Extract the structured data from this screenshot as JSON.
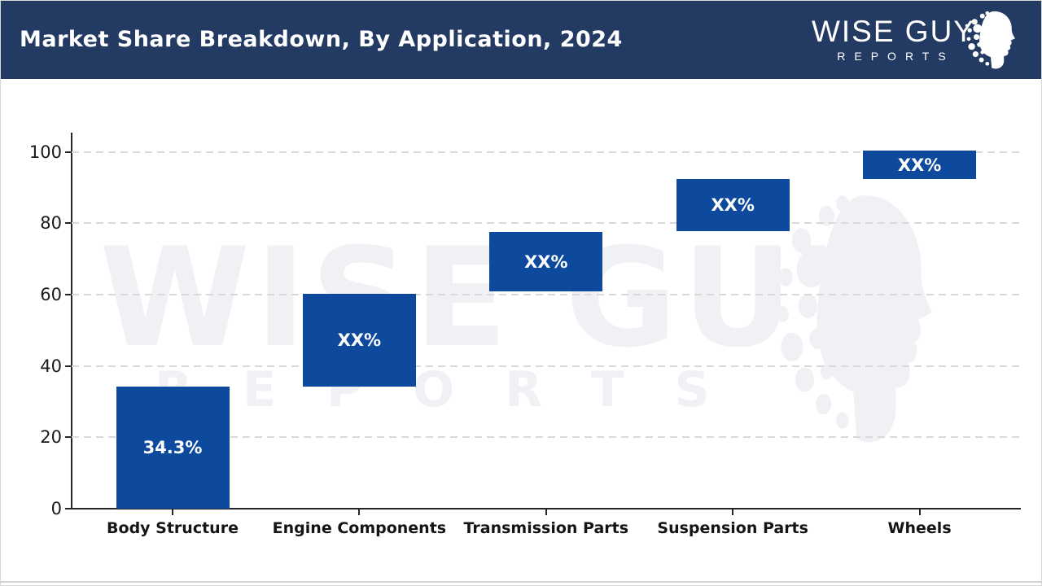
{
  "header": {
    "title": "Market Share Breakdown, By Application, 2024",
    "logo": {
      "line1": "WISE GUY",
      "line2": "REPORTS"
    }
  },
  "watermark": {
    "line1": "WISE GUY",
    "line2": "REPORTS"
  },
  "colors": {
    "header_bg": "#233a63",
    "bar": "#0d4a9e",
    "bar_label_text": "#ffffff",
    "watermark": "#f0f1f4",
    "gridline": "#d9d9d9",
    "axis": "#262626"
  },
  "chart_data": {
    "type": "bar",
    "subtype": "waterfall",
    "title": "Market Share Breakdown, By Application, 2024",
    "xlabel": "",
    "ylabel": "",
    "categories": [
      "Body Structure",
      "Engine Components",
      "Transmission Parts",
      "Suspension Parts",
      "Wheels"
    ],
    "segments": [
      {
        "category": "Body Structure",
        "start": 0,
        "end": 34.3,
        "label": "34.3%"
      },
      {
        "category": "Engine Components",
        "start": 34.3,
        "end": 60.3,
        "label": "XX%"
      },
      {
        "category": "Transmission Parts",
        "start": 60.8,
        "end": 77.5,
        "label": "XX%"
      },
      {
        "category": "Suspension Parts",
        "start": 77.7,
        "end": 92.3,
        "label": "XX%"
      },
      {
        "category": "Wheels",
        "start": 92.3,
        "end": 100.3,
        "label": "XX%"
      }
    ],
    "y_ticks": [
      0,
      20,
      40,
      60,
      80,
      100
    ],
    "ylim": [
      0,
      105
    ],
    "grid": "horizontal-dashed",
    "legend": "none"
  }
}
